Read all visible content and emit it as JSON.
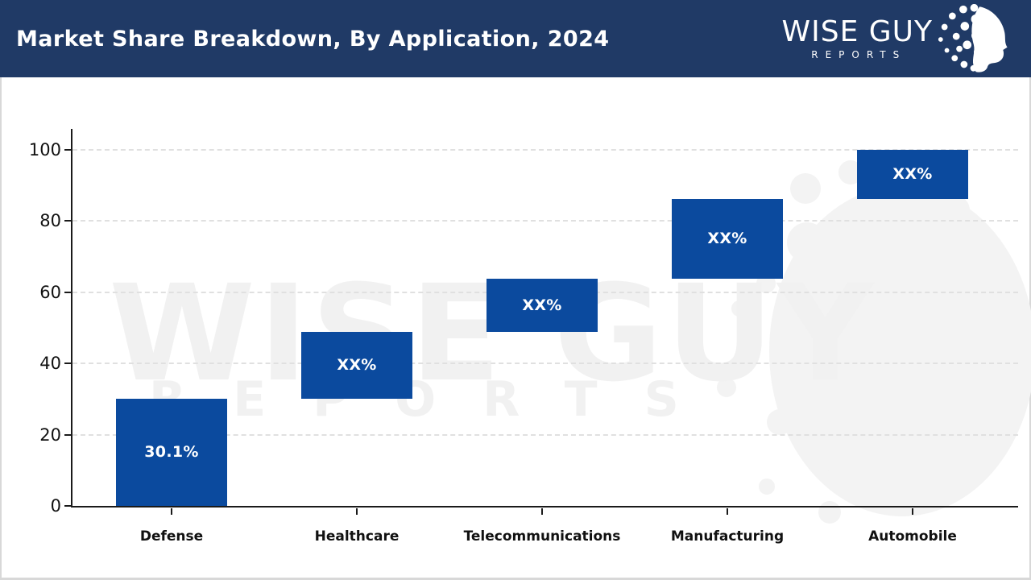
{
  "header": {
    "title": "Market Share Breakdown, By Application, 2024",
    "background_color": "#203a66",
    "logo": {
      "line1": "WISE GUY",
      "line2": "REPORTS"
    }
  },
  "watermark": {
    "line1": "WISE GUY",
    "line2": "REPORTS"
  },
  "chart_data": {
    "type": "bar",
    "variant": "waterfall",
    "title": "Market Share Breakdown, By Application, 2024",
    "categories": [
      "Defense",
      "Healthcare",
      "Telecommunications",
      "Manufacturing",
      "Automobile"
    ],
    "segments": [
      {
        "category": "Defense",
        "start": 0,
        "end": 30.1,
        "label": "30.1%"
      },
      {
        "category": "Healthcare",
        "start": 30.1,
        "end": 48.9,
        "label": "XX%"
      },
      {
        "category": "Telecommunications",
        "start": 48.9,
        "end": 63.8,
        "label": "XX%"
      },
      {
        "category": "Manufacturing",
        "start": 63.8,
        "end": 86.2,
        "label": "XX%"
      },
      {
        "category": "Automobile",
        "start": 86.2,
        "end": 100,
        "label": "XX%"
      }
    ],
    "yticks": [
      0,
      20,
      40,
      60,
      80,
      100
    ],
    "ylim": [
      0,
      105.8
    ],
    "xlabel": "",
    "ylabel": "",
    "bar_color": "#0b4a9e",
    "bar_label_color": "#ffffff",
    "grid": "horizontal-dashed",
    "gridline_color": "#e0e0e0",
    "axis_color": "#1a1a1a",
    "legend": "none"
  }
}
